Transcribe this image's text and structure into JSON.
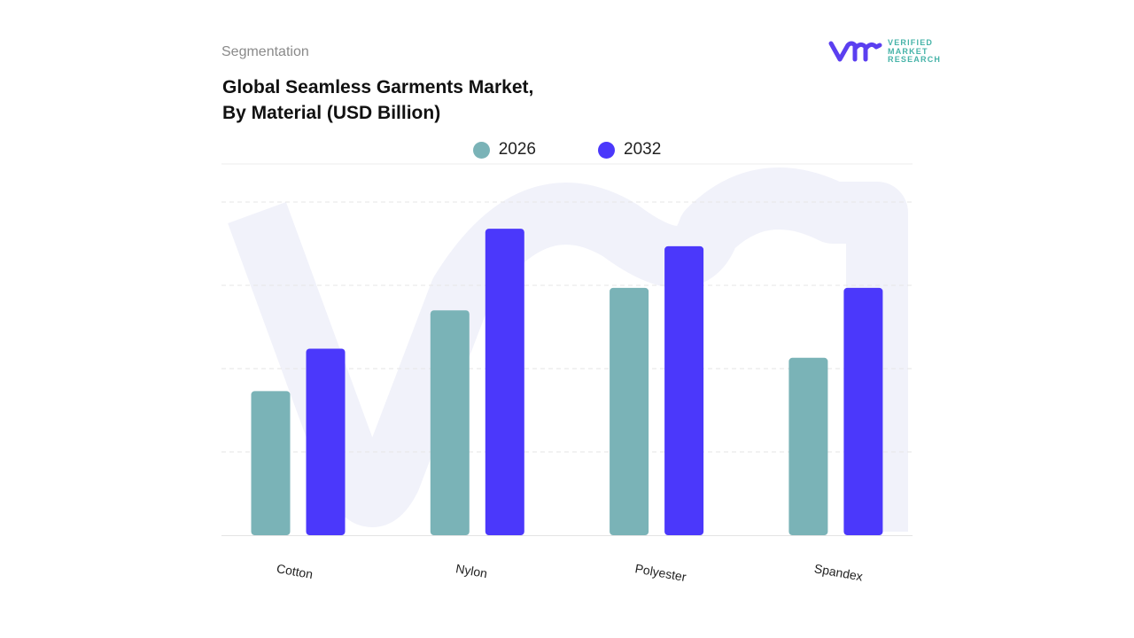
{
  "header": {
    "segment_label": "Segmentation",
    "title_line1": "Global Seamless Garments Market,",
    "title_line2": "By Material (USD Billion)"
  },
  "logo": {
    "line1": "VERIFIED",
    "line2": "MARKET",
    "line3": "RESEARCH",
    "mark": "vmr"
  },
  "chart_data": {
    "type": "bar",
    "title": "Global Seamless Garments Market, By Material (USD Billion)",
    "categories": [
      "Cotton",
      "Nylon",
      "Polyester",
      "Spandex"
    ],
    "series": [
      {
        "name": "2026",
        "color": "#7ab3b7",
        "values": [
          1.73,
          2.7,
          2.97,
          2.13
        ]
      },
      {
        "name": "2032",
        "color": "#4b38fb",
        "values": [
          2.24,
          3.68,
          3.47,
          2.97
        ]
      }
    ],
    "ylim": [
      0,
      4
    ],
    "y_axis_labels_shown": false,
    "grid": true,
    "legend_position": "top-center",
    "xlabel": "",
    "ylabel": ""
  }
}
